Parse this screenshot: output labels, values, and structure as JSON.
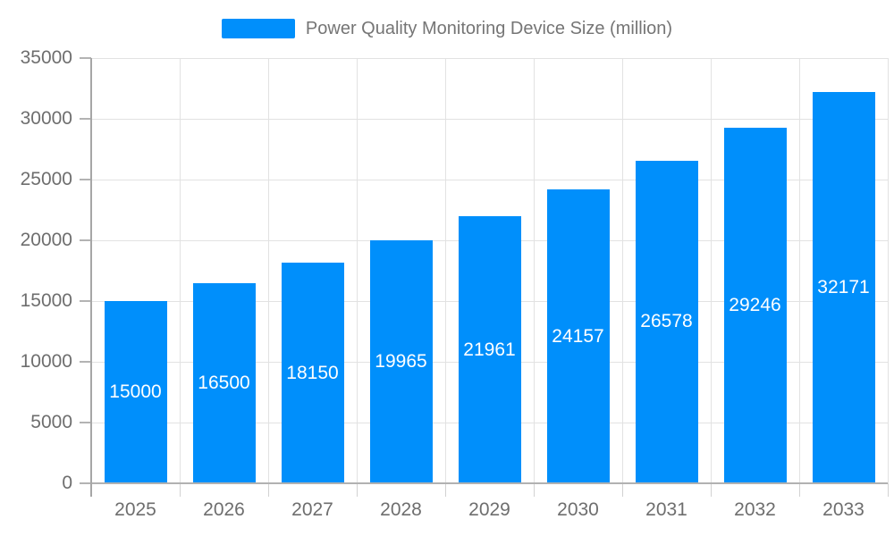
{
  "legend": {
    "label": "Power Quality Monitoring Device Size (million)"
  },
  "chart_data": {
    "type": "bar",
    "title": "Power Quality Monitoring Device Size (million)",
    "categories": [
      "2025",
      "2026",
      "2027",
      "2028",
      "2029",
      "2030",
      "2031",
      "2032",
      "2033"
    ],
    "series": [
      {
        "name": "Power Quality Monitoring Device Size (million)",
        "values": [
          15000,
          16500,
          18150,
          19965,
          21961,
          24157,
          26578,
          29246,
          32171
        ]
      }
    ],
    "xlabel": "",
    "ylabel": "",
    "ylim": [
      0,
      35000
    ],
    "ytick_interval": 5000,
    "yticks": [
      0,
      5000,
      10000,
      15000,
      20000,
      25000,
      30000,
      35000
    ],
    "grid": true,
    "vertical_gridlines": true,
    "legend_position": "top",
    "data_labels_position": "inside-center"
  },
  "colors": {
    "bar": "#008FFB",
    "bar_label": "#FFFFFF",
    "grid": "#E2E2E2",
    "axis_x": "#B1B1B1",
    "axis_y": "#A6A6A6",
    "tick_x": "#D2D2D2",
    "tick_y": "#B3B3B3",
    "axis_text": "#6E6E6E",
    "legend_text": "#757575",
    "background": "#FFFFFF"
  }
}
